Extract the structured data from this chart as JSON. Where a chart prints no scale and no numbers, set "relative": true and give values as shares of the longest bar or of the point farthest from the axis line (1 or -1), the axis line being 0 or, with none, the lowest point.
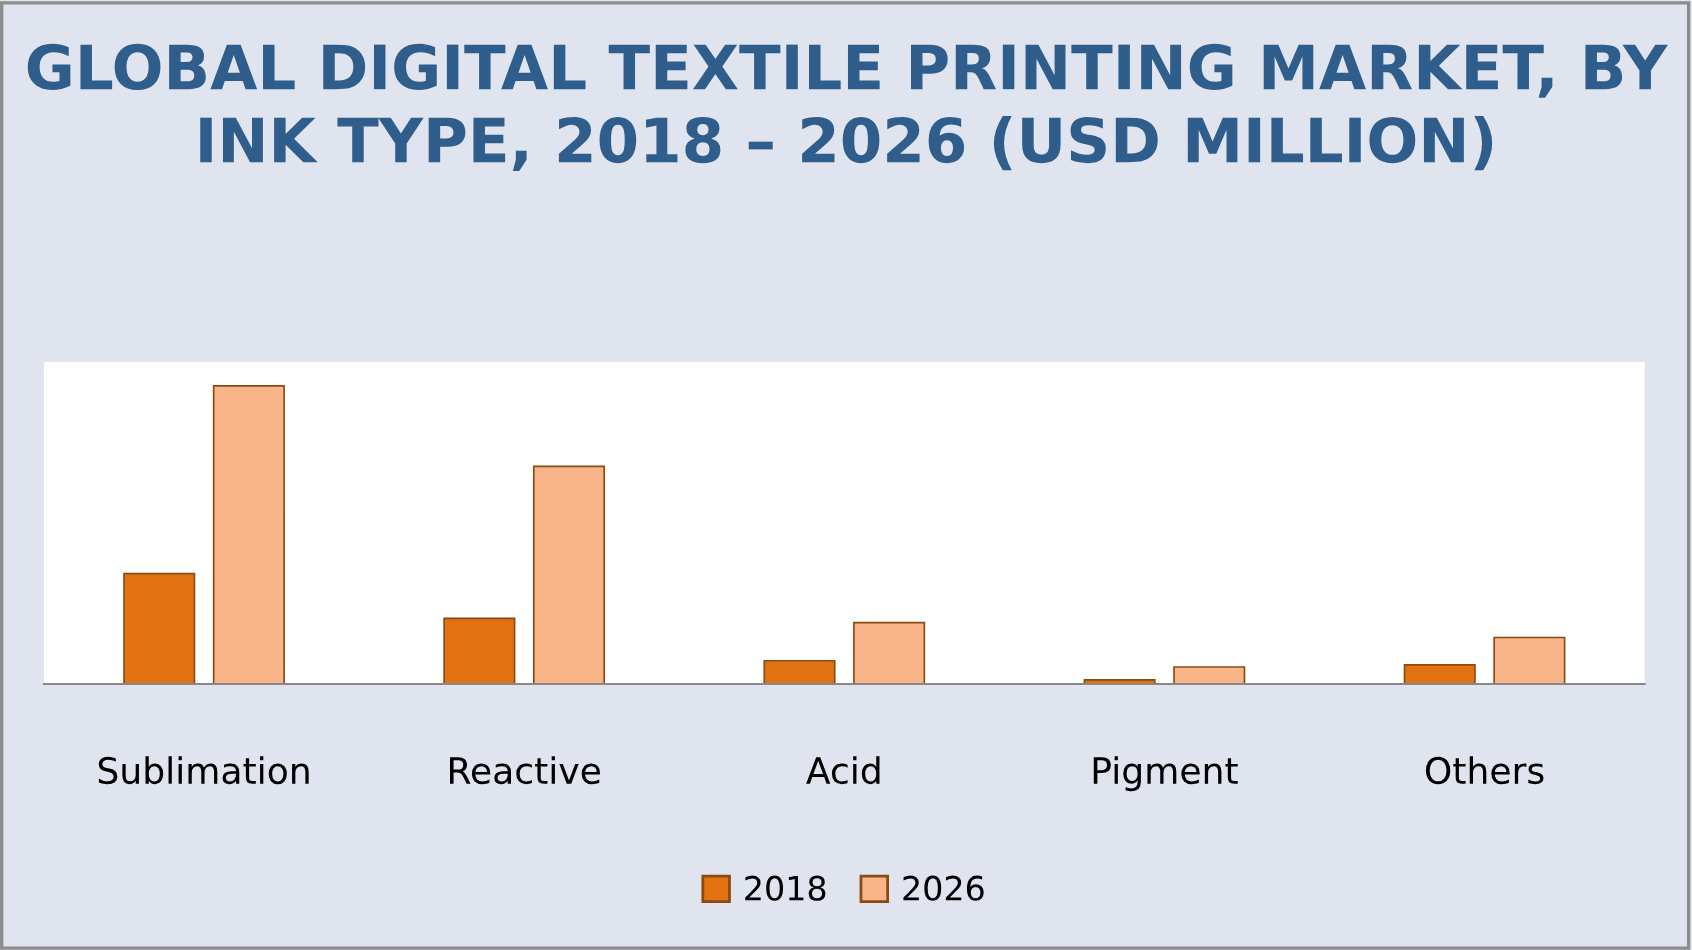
{
  "chart_data": {
    "type": "bar",
    "title": "GLOBAL DIGITAL TEXTILE PRINTING MARKET, BY INK TYPE, 2018 – 2026 (USD MILLION)",
    "categories": [
      "Sublimation",
      "Reactive",
      "Acid",
      "Pigment",
      "Others"
    ],
    "relative": true,
    "series": [
      {
        "name": "2018",
        "color": "#e37213",
        "values": [
          0.37,
          0.22,
          0.078,
          0.014,
          0.064
        ]
      },
      {
        "name": "2026",
        "color": "#f9b48a",
        "values": [
          1,
          0.73,
          0.206,
          0.057,
          0.156
        ]
      }
    ],
    "legend": "bottom",
    "grid": false
  }
}
